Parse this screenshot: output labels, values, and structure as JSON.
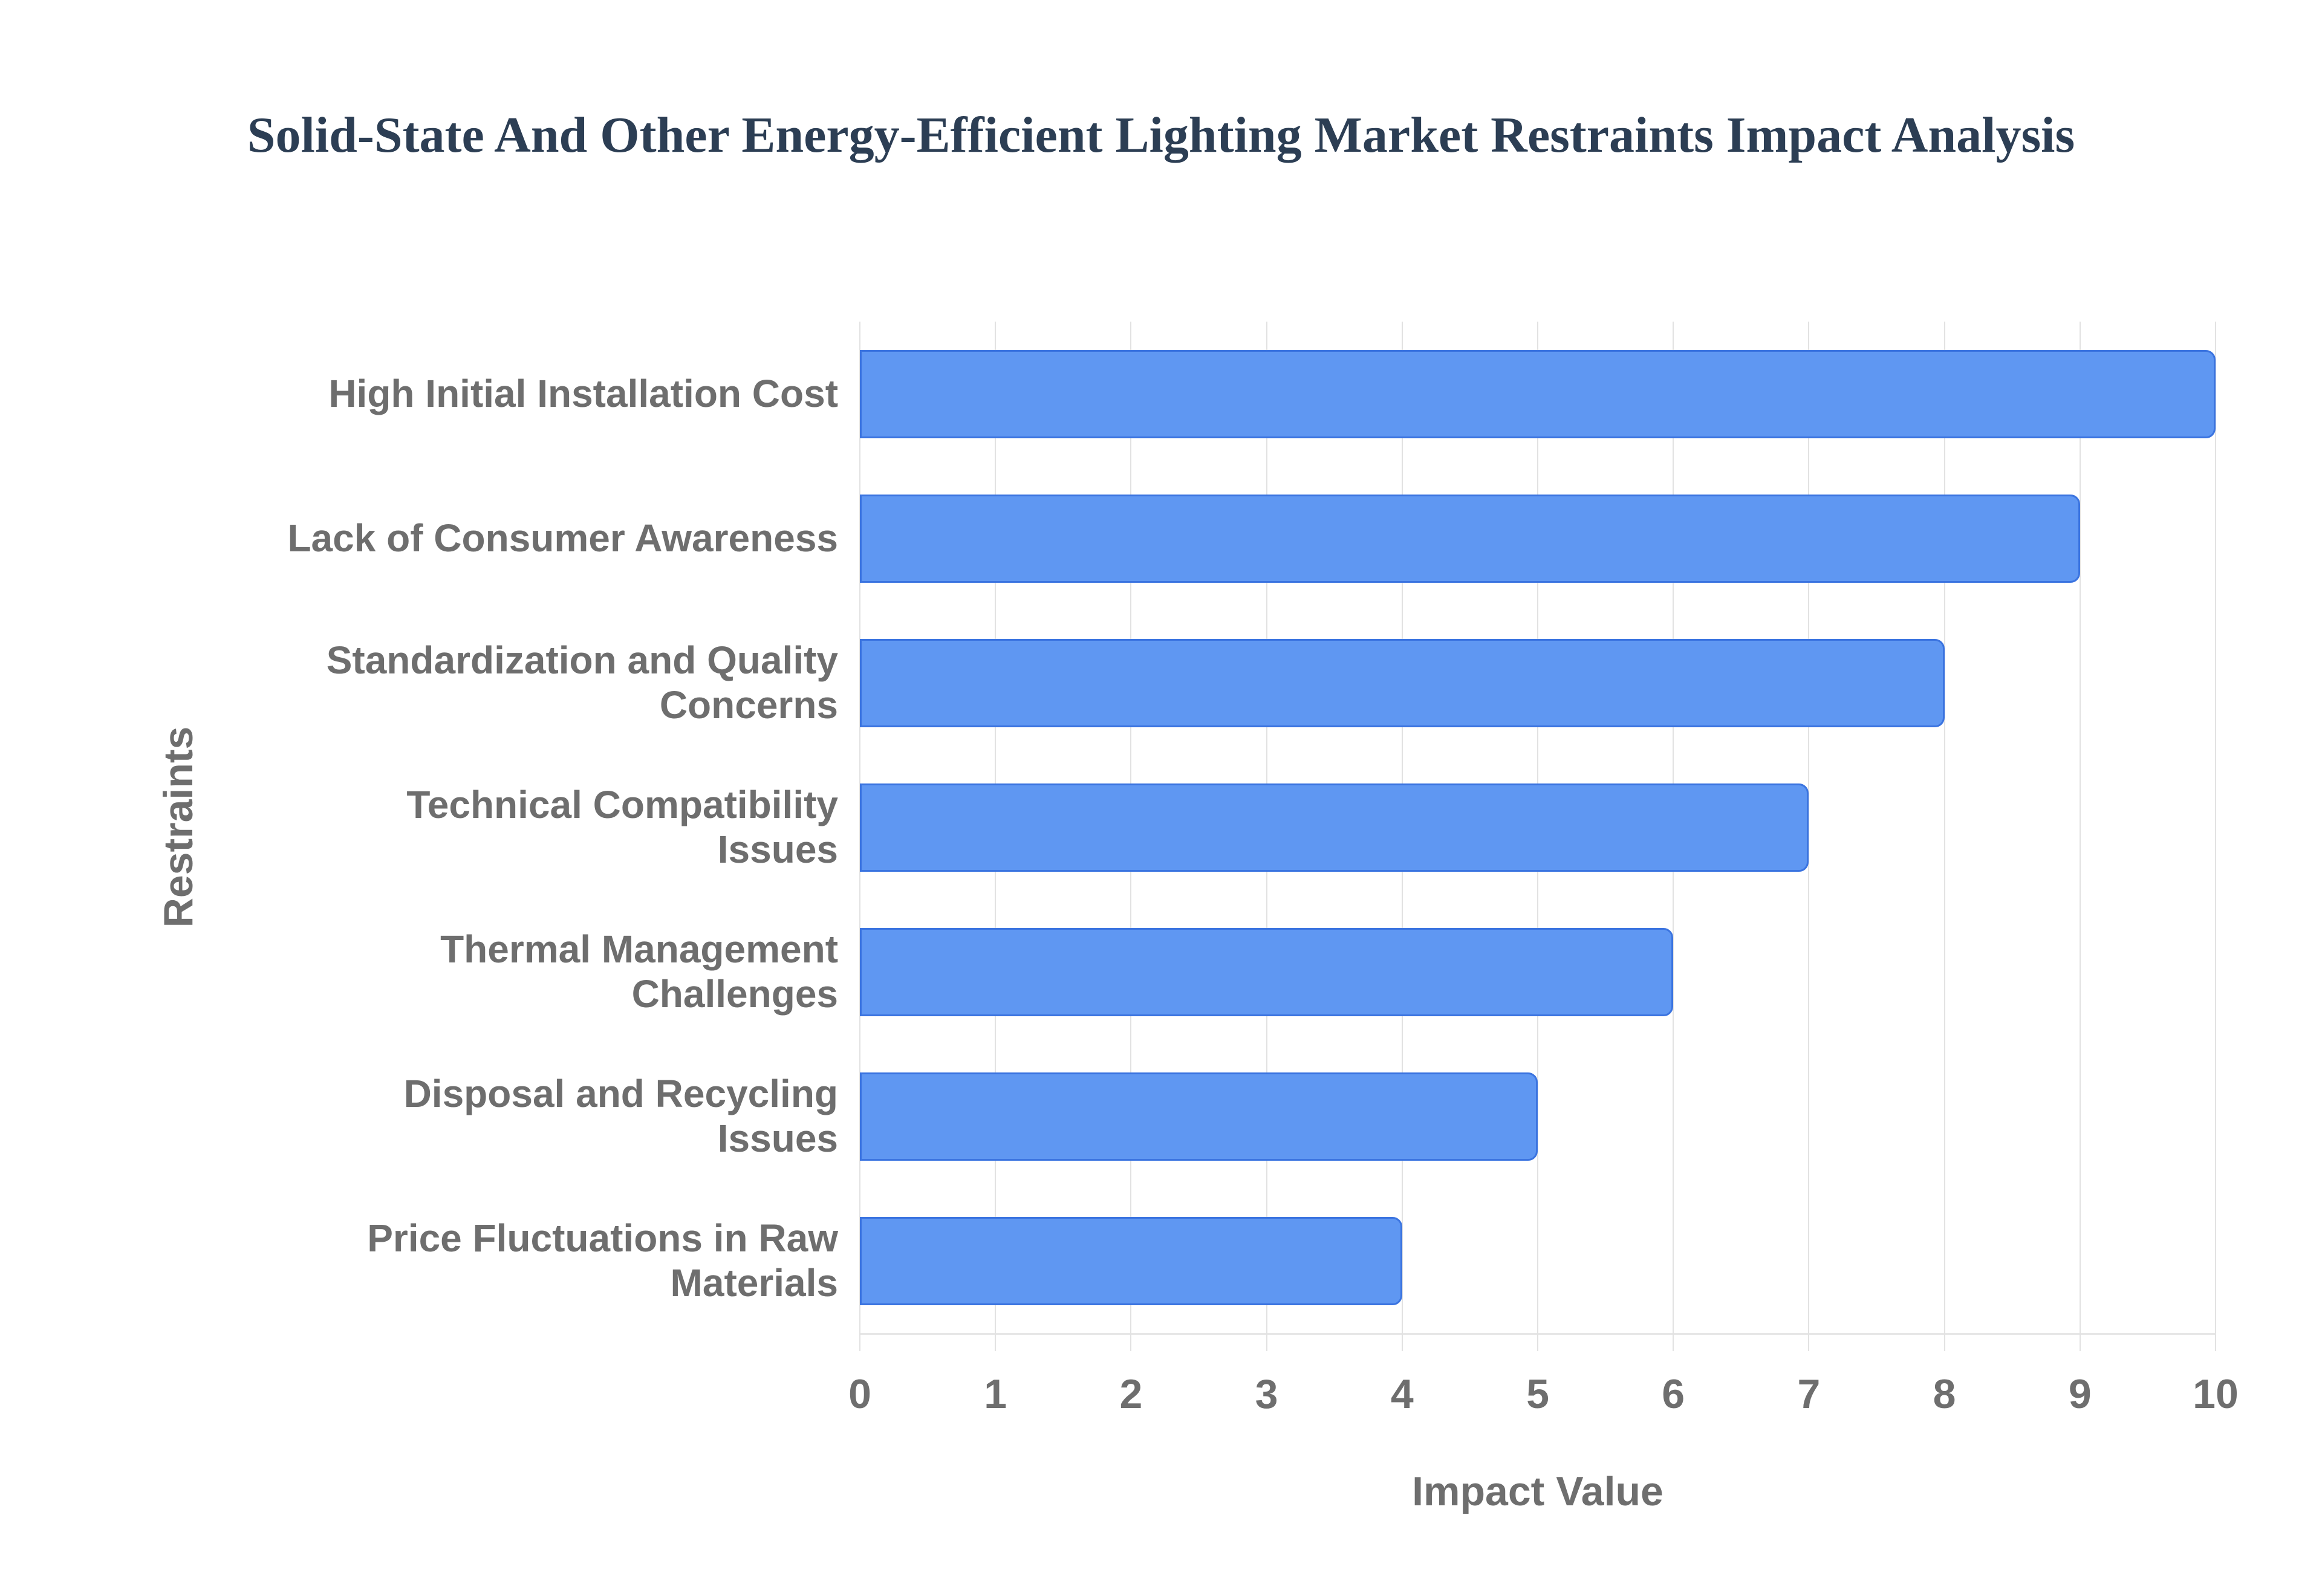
{
  "page": {
    "background": "#ffffff"
  },
  "chart_data": {
    "type": "bar",
    "orientation": "horizontal",
    "title": "Solid-State And Other Energy-Efficient Lighting Market Restraints Impact Analysis",
    "xlabel": "Impact Value",
    "ylabel": "Restraints",
    "categories": [
      "High Initial Installation Cost",
      "Lack of Consumer Awareness",
      "Standardization and Quality Concerns",
      "Technical Compatibility Issues",
      "Thermal Management Challenges",
      "Disposal and Recycling Issues",
      "Price Fluctuations in Raw Materials"
    ],
    "values": [
      10,
      9,
      8,
      7,
      6,
      5,
      4
    ],
    "xlim": [
      0,
      10
    ],
    "xticks": [
      0,
      1,
      2,
      3,
      4,
      5,
      6,
      7,
      8,
      9,
      10
    ],
    "grid": "vertical",
    "legend_position": "none",
    "colors": {
      "bar_fill": "#5f97f2",
      "bar_border": "#3b74e0",
      "grid": "#e2e2e2",
      "axis_line": "#e7e7e7",
      "title_text": "#2c3e54",
      "label_text": "#6e6e6e"
    }
  }
}
